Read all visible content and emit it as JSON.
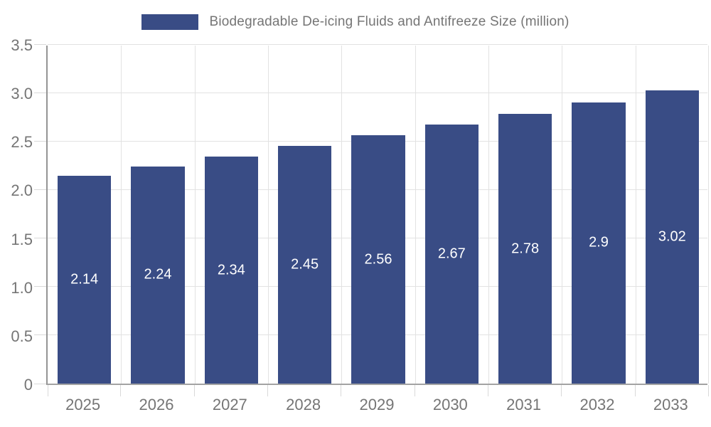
{
  "legend": {
    "label": "Biodegradable De-icing Fluids and Antifreeze Size (million)"
  },
  "colors": {
    "bar": "#394c85",
    "grid": "#e2e2e2",
    "axis_line": "#999999",
    "tick_mark": "#d9d9d9",
    "axis_text": "#757575",
    "value_text": "#ffffff"
  },
  "chart_data": {
    "type": "bar",
    "title": "Biodegradable De-icing Fluids and Antifreeze Size (million)",
    "categories": [
      "2025",
      "2026",
      "2027",
      "2028",
      "2029",
      "2030",
      "2031",
      "2032",
      "2033"
    ],
    "values": [
      2.14,
      2.24,
      2.34,
      2.45,
      2.56,
      2.67,
      2.78,
      2.9,
      3.02
    ],
    "value_labels": [
      "2.14",
      "2.24",
      "2.34",
      "2.45",
      "2.56",
      "2.67",
      "2.78",
      "2.9",
      "3.02"
    ],
    "xlabel": "",
    "ylabel": "",
    "ylim": [
      0,
      3.5
    ],
    "ytick_step": 0.5,
    "ytick_labels": [
      "0",
      "0.5",
      "1.0",
      "1.5",
      "2.0",
      "2.5",
      "3.0",
      "3.5"
    ],
    "grid": "on",
    "legend_position": "top-center",
    "bar_width_fraction": 0.73
  }
}
